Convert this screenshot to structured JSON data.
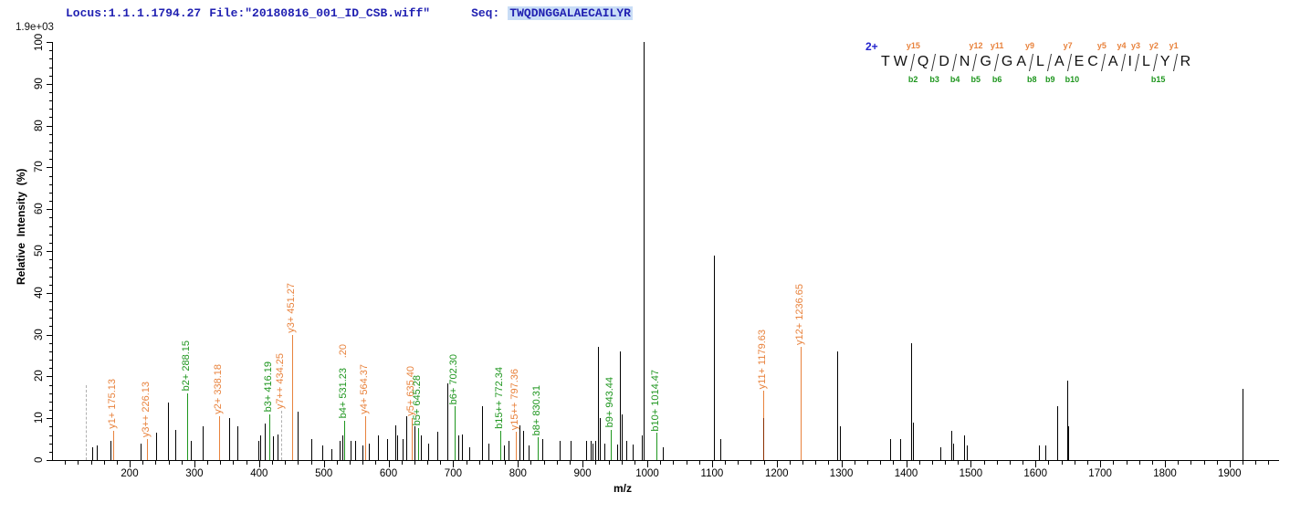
{
  "window": {
    "locus": "Locus:1.1.1.1794.27",
    "file": "File:\"20180816_001_ID_CSB.wiff\"",
    "seq_label": "Seq:",
    "sequence": "TWQDNGGALAECAILYR"
  },
  "plot": {
    "scale_label": "1.9e+03",
    "y_axis_title": "Relative  Intensity  (%)",
    "x_axis_title": "m/z"
  },
  "precursor_charge": "2+",
  "peptide": {
    "residues": [
      "T",
      "W",
      "Q",
      "D",
      "N",
      "G",
      "G",
      "A",
      "L",
      "A",
      "E",
      "C",
      "A",
      "I",
      "L",
      "Y",
      "R"
    ],
    "boundaries": [
      {
        "after": 2,
        "top": "y15",
        "bottom": "b2"
      },
      {
        "after": 3,
        "top": "",
        "bottom": "b3"
      },
      {
        "after": 4,
        "top": "",
        "bottom": "b4"
      },
      {
        "after": 5,
        "top": "y12",
        "bottom": "b5"
      },
      {
        "after": 6,
        "top": "y11",
        "bottom": "b6"
      },
      {
        "after": 8,
        "top": "y9",
        "bottom": "b8"
      },
      {
        "after": 9,
        "top": "",
        "bottom": "b9"
      },
      {
        "after": 10,
        "top": "y7",
        "bottom": "b10"
      },
      {
        "after": 12,
        "top": "y5",
        "bottom": ""
      },
      {
        "after": 13,
        "top": "y4",
        "bottom": ""
      },
      {
        "after": 14,
        "top": "y3",
        "bottom": ""
      },
      {
        "after": 15,
        "top": "y2",
        "bottom": "b15"
      },
      {
        "after": 16,
        "top": "y1",
        "bottom": ""
      }
    ]
  },
  "colors": {
    "y_ion": "#e8823c",
    "b_ion": "#1e961e",
    "unassigned": "#000000",
    "marker": "#b0b0b0",
    "y11_peak": "#8b2f00",
    "header_text": "#2121b2",
    "seq_highlight": "#c9ddf6",
    "charge_text": "#2222cc"
  },
  "axes": {
    "x_domain": [
      80,
      1975
    ],
    "y_domain": [
      0,
      100
    ],
    "x_label_min": 200,
    "x_label_max": 1900,
    "x_label_step": 100,
    "x_minor_start": 100,
    "x_minor_step": 20,
    "y_major_step": 10,
    "y_minor_step": 2
  },
  "chart_data": {
    "type": "stem",
    "title": "MS/MS fragment spectrum",
    "xlabel": "m/z",
    "ylabel": "Relative Intensity (%)",
    "xlim": [
      80,
      1975
    ],
    "ylim": [
      0,
      100
    ],
    "base_peak_intensity_label": "1.9e+03",
    "peaks": [
      {
        "mz": 132,
        "i": 18,
        "kind": "marker",
        "dashed": true
      },
      {
        "mz": 142,
        "i": 3,
        "kind": "u"
      },
      {
        "mz": 149,
        "i": 3.5,
        "kind": "u"
      },
      {
        "mz": 170,
        "i": 4.5,
        "kind": "u"
      },
      {
        "mz": 175.13,
        "i": 7,
        "kind": "y",
        "label": "y1+ 175.13"
      },
      {
        "mz": 217,
        "i": 4,
        "kind": "u"
      },
      {
        "mz": 226.13,
        "i": 5,
        "kind": "y",
        "label": "y3++ 226.13"
      },
      {
        "mz": 241,
        "i": 6.5,
        "kind": "u"
      },
      {
        "mz": 259,
        "i": 13.7,
        "kind": "u"
      },
      {
        "mz": 271,
        "i": 7.3,
        "kind": "u"
      },
      {
        "mz": 288.15,
        "i": 16,
        "kind": "b",
        "label": "b2+ 288.15"
      },
      {
        "mz": 295,
        "i": 4.5,
        "kind": "u"
      },
      {
        "mz": 313,
        "i": 8,
        "kind": "u"
      },
      {
        "mz": 338.18,
        "i": 10.6,
        "kind": "y",
        "label": "y2+ 338.18"
      },
      {
        "mz": 353,
        "i": 10,
        "kind": "u"
      },
      {
        "mz": 367,
        "i": 8,
        "kind": "u"
      },
      {
        "mz": 399,
        "i": 4.7,
        "kind": "u"
      },
      {
        "mz": 402,
        "i": 5.8,
        "kind": "u"
      },
      {
        "mz": 409,
        "i": 8.8,
        "kind": "u"
      },
      {
        "mz": 416.19,
        "i": 11,
        "kind": "b",
        "label": "b3+ 416.19"
      },
      {
        "mz": 421,
        "i": 5.6,
        "kind": "u"
      },
      {
        "mz": 428,
        "i": 6.2,
        "kind": "u"
      },
      {
        "mz": 434.25,
        "i": 11.7,
        "kind": "y",
        "label": "y7++ 434.25",
        "dashed": true
      },
      {
        "mz": 451.27,
        "i": 30,
        "kind": "y",
        "label": "y3+ 451.27"
      },
      {
        "mz": 459,
        "i": 11.5,
        "kind": "u"
      },
      {
        "mz": 480,
        "i": 5,
        "kind": "u"
      },
      {
        "mz": 498,
        "i": 3.4,
        "kind": "u"
      },
      {
        "mz": 512,
        "i": 2.6,
        "kind": "u"
      },
      {
        "mz": 524,
        "i": 4.6,
        "kind": "u"
      },
      {
        "mz": 528,
        "i": 5.8,
        "kind": "u"
      },
      {
        "mz": 531.23,
        "i": 9.5,
        "kind": "b",
        "label": "b4+ 531.23",
        "label2": ".20",
        "label2_kind": "y"
      },
      {
        "mz": 541,
        "i": 4.5,
        "kind": "u"
      },
      {
        "mz": 548,
        "i": 4.7,
        "kind": "u"
      },
      {
        "mz": 559,
        "i": 3.4,
        "kind": "u"
      },
      {
        "mz": 564.37,
        "i": 10.6,
        "kind": "y",
        "label": "y4+ 564.37"
      },
      {
        "mz": 570,
        "i": 4,
        "kind": "u"
      },
      {
        "mz": 584,
        "i": 5.8,
        "kind": "u"
      },
      {
        "mz": 598,
        "i": 5,
        "kind": "u"
      },
      {
        "mz": 611,
        "i": 8.4,
        "kind": "u"
      },
      {
        "mz": 614,
        "i": 6,
        "kind": "u"
      },
      {
        "mz": 622,
        "i": 5,
        "kind": "u"
      },
      {
        "mz": 628,
        "i": 10.6,
        "kind": "u"
      },
      {
        "mz": 635.4,
        "i": 10,
        "kind": "y",
        "label": "y5+ 635.40"
      },
      {
        "mz": 640,
        "i": 8,
        "kind": "u"
      },
      {
        "mz": 645.28,
        "i": 7.7,
        "kind": "b",
        "label": "b5+ 645.28"
      },
      {
        "mz": 650,
        "i": 5.8,
        "kind": "u"
      },
      {
        "mz": 661,
        "i": 4,
        "kind": "u"
      },
      {
        "mz": 675,
        "i": 6.7,
        "kind": "u"
      },
      {
        "mz": 691,
        "i": 18.3,
        "kind": "u"
      },
      {
        "mz": 702.3,
        "i": 12.8,
        "kind": "b",
        "label": "b6+ 702.30"
      },
      {
        "mz": 708,
        "i": 6,
        "kind": "u"
      },
      {
        "mz": 714,
        "i": 6.2,
        "kind": "u"
      },
      {
        "mz": 725,
        "i": 3,
        "kind": "u"
      },
      {
        "mz": 745,
        "i": 12.8,
        "kind": "u"
      },
      {
        "mz": 755,
        "i": 4,
        "kind": "u"
      },
      {
        "mz": 772.34,
        "i": 7,
        "kind": "b",
        "label": "b15++ 772.34"
      },
      {
        "mz": 779,
        "i": 3.6,
        "kind": "u"
      },
      {
        "mz": 786,
        "i": 4.5,
        "kind": "u"
      },
      {
        "mz": 797.36,
        "i": 6.7,
        "kind": "y",
        "label": "y15++ 797.36"
      },
      {
        "mz": 803,
        "i": 8.4,
        "kind": "u"
      },
      {
        "mz": 808,
        "i": 7,
        "kind": "u"
      },
      {
        "mz": 817,
        "i": 3.6,
        "kind": "u"
      },
      {
        "mz": 830.31,
        "i": 5.4,
        "kind": "b",
        "label": "b8+ 830.31"
      },
      {
        "mz": 837,
        "i": 5.1,
        "kind": "u"
      },
      {
        "mz": 864,
        "i": 4.5,
        "kind": "u"
      },
      {
        "mz": 881,
        "i": 4.5,
        "kind": "u"
      },
      {
        "mz": 905,
        "i": 4.5,
        "kind": "u"
      },
      {
        "mz": 912,
        "i": 4.7,
        "kind": "u"
      },
      {
        "mz": 915,
        "i": 4,
        "kind": "u"
      },
      {
        "mz": 919,
        "i": 4.5,
        "kind": "u"
      },
      {
        "mz": 924,
        "i": 27,
        "kind": "u"
      },
      {
        "mz": 926,
        "i": 10,
        "kind": "u"
      },
      {
        "mz": 933,
        "i": 4,
        "kind": "u"
      },
      {
        "mz": 943.44,
        "i": 7.3,
        "kind": "b",
        "label": "b9+ 943.44"
      },
      {
        "mz": 953,
        "i": 3.8,
        "kind": "u"
      },
      {
        "mz": 958,
        "i": 26,
        "kind": "u"
      },
      {
        "mz": 960,
        "i": 11,
        "kind": "u"
      },
      {
        "mz": 968,
        "i": 4.5,
        "kind": "u"
      },
      {
        "mz": 978,
        "i": 3.8,
        "kind": "u"
      },
      {
        "mz": 992,
        "i": 6,
        "kind": "u"
      },
      {
        "mz": 994.5,
        "i": 100,
        "kind": "u"
      },
      {
        "mz": 1014.47,
        "i": 6.5,
        "kind": "b",
        "label": "b10+ 1014.47"
      },
      {
        "mz": 1024,
        "i": 3,
        "kind": "u"
      },
      {
        "mz": 1103,
        "i": 49,
        "kind": "u"
      },
      {
        "mz": 1113,
        "i": 5,
        "kind": "u"
      },
      {
        "mz": 1179.63,
        "i": 10,
        "label_h": 16.5,
        "kind": "y",
        "peak_color": "#8b2f00",
        "label": "y11+ 1179.63"
      },
      {
        "mz": 1236.65,
        "i": 27,
        "kind": "y",
        "label": "y12+ 1236.65"
      },
      {
        "mz": 1294,
        "i": 26,
        "kind": "u"
      },
      {
        "mz": 1297,
        "i": 8,
        "kind": "u"
      },
      {
        "mz": 1375,
        "i": 5,
        "kind": "u"
      },
      {
        "mz": 1391,
        "i": 5,
        "kind": "u"
      },
      {
        "mz": 1408,
        "i": 28,
        "kind": "u"
      },
      {
        "mz": 1410,
        "i": 9,
        "kind": "u"
      },
      {
        "mz": 1453,
        "i": 3,
        "kind": "u"
      },
      {
        "mz": 1470,
        "i": 7,
        "kind": "u"
      },
      {
        "mz": 1472,
        "i": 4,
        "kind": "u"
      },
      {
        "mz": 1489,
        "i": 6,
        "kind": "u"
      },
      {
        "mz": 1494,
        "i": 3.5,
        "kind": "u"
      },
      {
        "mz": 1605,
        "i": 3.5,
        "kind": "u"
      },
      {
        "mz": 1615,
        "i": 3.5,
        "kind": "u"
      },
      {
        "mz": 1633,
        "i": 13,
        "kind": "u"
      },
      {
        "mz": 1649,
        "i": 19,
        "kind": "u"
      },
      {
        "mz": 1651,
        "i": 8,
        "kind": "u"
      },
      {
        "mz": 1920,
        "i": 17,
        "kind": "u"
      }
    ]
  }
}
